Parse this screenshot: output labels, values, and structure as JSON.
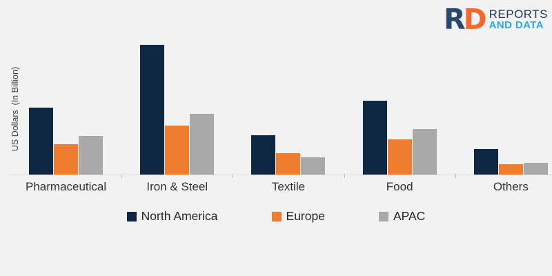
{
  "page": {
    "background": "#f2f2f2"
  },
  "logo": {
    "mark_r": "R",
    "mark_d": "D",
    "line1": "REPORTS",
    "line2": "AND DATA",
    "colors": {
      "mark_r": "#26476e",
      "mark_d": "#f4682a",
      "line1": "#203a58",
      "line2": "#2aa9e0"
    }
  },
  "chart_data": {
    "type": "bar",
    "title": "",
    "xlabel": "",
    "ylabel": "US Dollars  (In Billion)",
    "ylim": [
      0,
      215
    ],
    "grid": false,
    "legend_position": "bottom",
    "categories": [
      "Pharmaceutical",
      "Iron & Steel",
      "Textile",
      "Food",
      "Others"
    ],
    "series": [
      {
        "name": "North America",
        "color": "#0e2743",
        "values": [
          97,
          188,
          57,
          107,
          37
        ]
      },
      {
        "name": "Europe",
        "color": "#ee7d2f",
        "values": [
          44,
          71,
          31,
          51,
          15
        ]
      },
      {
        "name": "APAC",
        "color": "#a9a9a9",
        "values": [
          56,
          88,
          25,
          66,
          17
        ]
      }
    ]
  }
}
